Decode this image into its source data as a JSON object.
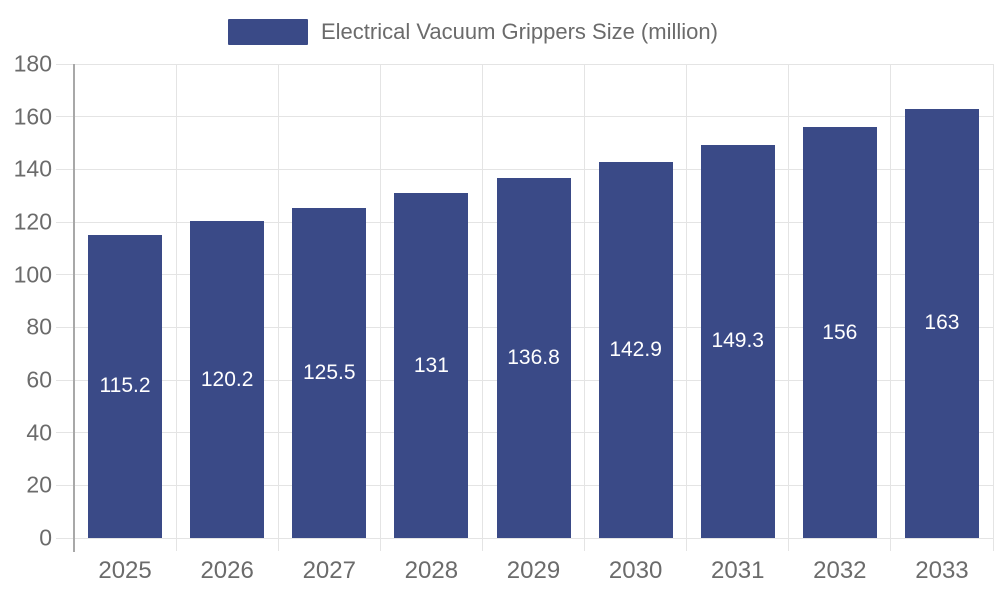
{
  "legend": {
    "label": "Electrical Vacuum Grippers Size (million)"
  },
  "chart_data": {
    "type": "bar",
    "title": "Electrical Vacuum Grippers Size (million)",
    "categories": [
      "2025",
      "2026",
      "2027",
      "2028",
      "2029",
      "2030",
      "2031",
      "2032",
      "2033"
    ],
    "values": [
      115.2,
      120.2,
      125.5,
      131,
      136.8,
      142.9,
      149.3,
      156,
      163
    ],
    "value_labels": [
      "115.2",
      "120.2",
      "125.5",
      "131",
      "136.8",
      "142.9",
      "149.3",
      "156",
      "163"
    ],
    "series": [
      {
        "name": "Electrical Vacuum Grippers Size (million)",
        "values": [
          115.2,
          120.2,
          125.5,
          131,
          136.8,
          142.9,
          149.3,
          156,
          163
        ]
      }
    ],
    "xlabel": "",
    "ylabel": "",
    "ylim": [
      0,
      180
    ],
    "yticks": [
      0,
      20,
      40,
      60,
      80,
      100,
      120,
      140,
      160,
      180
    ],
    "grid": true,
    "legend_position": "top",
    "value_label_position": "center-inside",
    "colors": {
      "bar": "#3A4A87",
      "bar_label": "#FFFFFF",
      "axis_text": "#6B6B6B",
      "legend_text": "#6B6B6B",
      "gridline": "#E4E4E4",
      "axis_line": "#A8A8A8",
      "background": "#FFFFFF"
    }
  }
}
